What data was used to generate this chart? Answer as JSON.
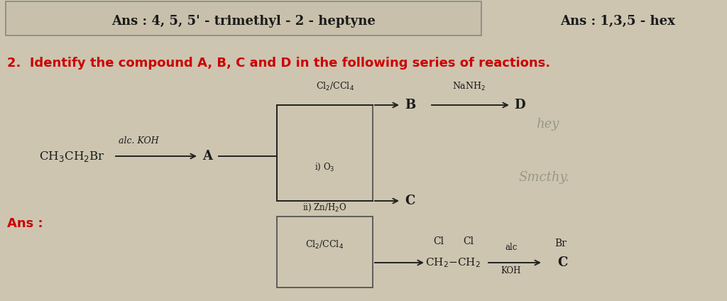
{
  "background_color": "#cdc5b0",
  "top_bar_facecolor": "#c8c0aa",
  "top_bar_edgecolor": "#888880",
  "title_text": "Ans : 4, 5, 5' - trimethyl - 2 - heptyne",
  "title_right_text": "Ans : 1,3,5 - hex",
  "question_text": "2.  Identify the compound A, B, C and D in the following series of reactions.",
  "question_color": "#cc0000",
  "reactant_text": "CH$_3$CH$_2$Br",
  "reagent_alc_koh": "alc. KOH",
  "compound_A": "A",
  "compound_B": "B",
  "compound_C": "C",
  "compound_D": "D",
  "reagent_cl2ccl4": "Cl$_2$/CCl$_4$",
  "reagent_nanh2": "NaNH$_2$",
  "reagent_o3": "i) O$_3$",
  "reagent_zn": "ii) Zn/H$_2$O",
  "ans_text": "Ans :",
  "ans_color": "#cc0000",
  "bottom_cl2ccl4": "Cl$_2$/CCl$_4$",
  "bottom_cl1": "Cl",
  "bottom_cl2": "Cl",
  "bottom_br": "Br",
  "bottom_alc": "alc",
  "bottom_koh": "KOH",
  "bottom_C": "C",
  "text_color": "#1a1a1a",
  "arrow_color": "#222222",
  "handwrite1": "hey",
  "handwrite2": "Smcthy."
}
